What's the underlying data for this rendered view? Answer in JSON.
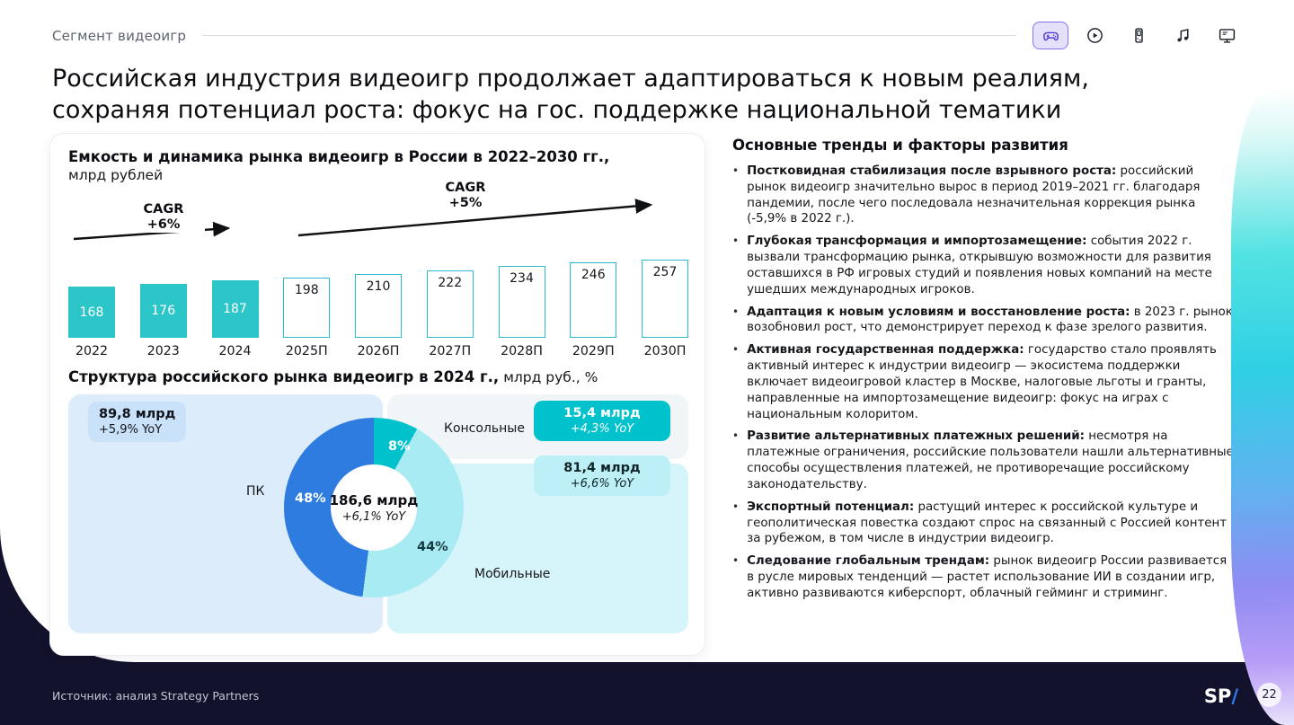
{
  "header": {
    "eyebrow": "Сегмент видеоигр",
    "toolbar_icons": [
      "gamepad-icon",
      "video-play-icon",
      "handheld-console-icon",
      "music-icon",
      "monitor-icon"
    ],
    "active_icon": "gamepad-icon",
    "active_icon_color": "#4f3fd8",
    "active_icon_bg": "#e5e0fb"
  },
  "title": {
    "line1": "Российская индустрия видеоигр продолжает адаптироваться к новым реалиям,",
    "line2": "сохраняя потенциал роста: фокус на гос. поддержке национальной тематики"
  },
  "chart_data": [
    {
      "type": "bar",
      "title": "Емкость и динамика рынка видеоигр в России в 2022–2030 гг.,",
      "unit": "млрд рублей",
      "categories": [
        "2022",
        "2023",
        "2024",
        "2025П",
        "2026П",
        "2027П",
        "2028П",
        "2029П",
        "2030П"
      ],
      "values": [
        168,
        176,
        187,
        198,
        210,
        222,
        234,
        246,
        257
      ],
      "filled_count": 3,
      "bar_fill_color": "#2cc6c8",
      "bar_outline_color": "#2fb9cf",
      "ylim": [
        0,
        270
      ],
      "annotations": [
        {
          "label": "CAGR\n+6%",
          "from": "2022",
          "to": "2024"
        },
        {
          "label": "CAGR\n+5%",
          "from": "2025П",
          "to": "2030П"
        }
      ]
    },
    {
      "type": "donut",
      "title": "Структура российского рынка видеоигр в 2024 г.,",
      "unit": "млрд руб., %",
      "segments": [
        {
          "label": "Консольные",
          "pct": 8,
          "pct_label": "8%",
          "value": "15,4 млрд",
          "yoy": "+4,3% YoY",
          "color": "#00c2cd"
        },
        {
          "label": "Мобильные",
          "pct": 44,
          "pct_label": "44%",
          "value": "81,4 млрд",
          "yoy": "+6,6% YoY",
          "color": "#a9ebf2"
        },
        {
          "label": "ПК",
          "pct": 48,
          "pct_label": "48%",
          "value": "89,8 млрд",
          "yoy": "+5,9% YoY",
          "color": "#2e7ce0"
        }
      ],
      "center_value": "186,6 млрд",
      "center_yoy": "+6,1% YoY"
    }
  ],
  "trends": {
    "title": "Основные тренды и факторы развития",
    "items": [
      {
        "bold": "Постковидная стабилизация после взрывного роста:",
        "text": " российский рынок видеоигр значительно вырос в период 2019–2021 гг. благодаря пандемии, после чего последовала незначительная коррекция рынка (-5,9% в 2022 г.)."
      },
      {
        "bold": "Глубокая трансформация и импортозамещение:",
        "text": " события 2022 г. вызвали трансформацию рынка, открывшую возможности для развития оставшихся в РФ игровых студий и появления новых компаний на месте ушедших международных игроков."
      },
      {
        "bold": "Адаптация к новым условиям и восстановление роста:",
        "text": " в 2023 г. рынок возобновил рост, что демонстрирует переход к фазе зрелого развития."
      },
      {
        "bold": "Активная государственная поддержка:",
        "text": " государство стало проявлять активный интерес к индустрии видеоигр — экосистема поддержки включает видеоигровой кластер в Москве, налоговые льготы и гранты, направленные на импортозамещение видеоигр: фокус на играх с национальным колоритом."
      },
      {
        "bold": "Развитие альтернативных платежных решений:",
        "text": " несмотря на платежные ограничения, российские пользователи нашли альтернативные способы осуществления платежей, не противоречащие российскому законодательству."
      },
      {
        "bold": "Экспортный потенциал:",
        "text": " растущий интерес к российской культуре и геополитическая повестка создают спрос на связанный с Россией контент за рубежом, в том числе в индустрии видеоигр."
      },
      {
        "bold": "Следование глобальным трендам:",
        "text": " рынок видеоигр России развивается в русле мировых тенденций — растет использование ИИ в создании игр, активно развиваются киберспорт, облачный гейминг и стриминг."
      }
    ]
  },
  "footer": {
    "source": "Источник: анализ Strategy Partners",
    "logo_text": "SP",
    "logo_slash": "/",
    "page_number": "22"
  },
  "colors": {
    "footer_bg": "#13122c",
    "panel_pc": "#dcecfb",
    "panel_console": "#f0f6f7",
    "panel_mobile": "#d6f5fa",
    "badge_pc": "#c9e2f9",
    "badge_console": "#00c2cd",
    "badge_mobile": "#bdf0f6",
    "blob_teal": "#2fd0e4",
    "blob_purple": "#8f8cf2"
  }
}
